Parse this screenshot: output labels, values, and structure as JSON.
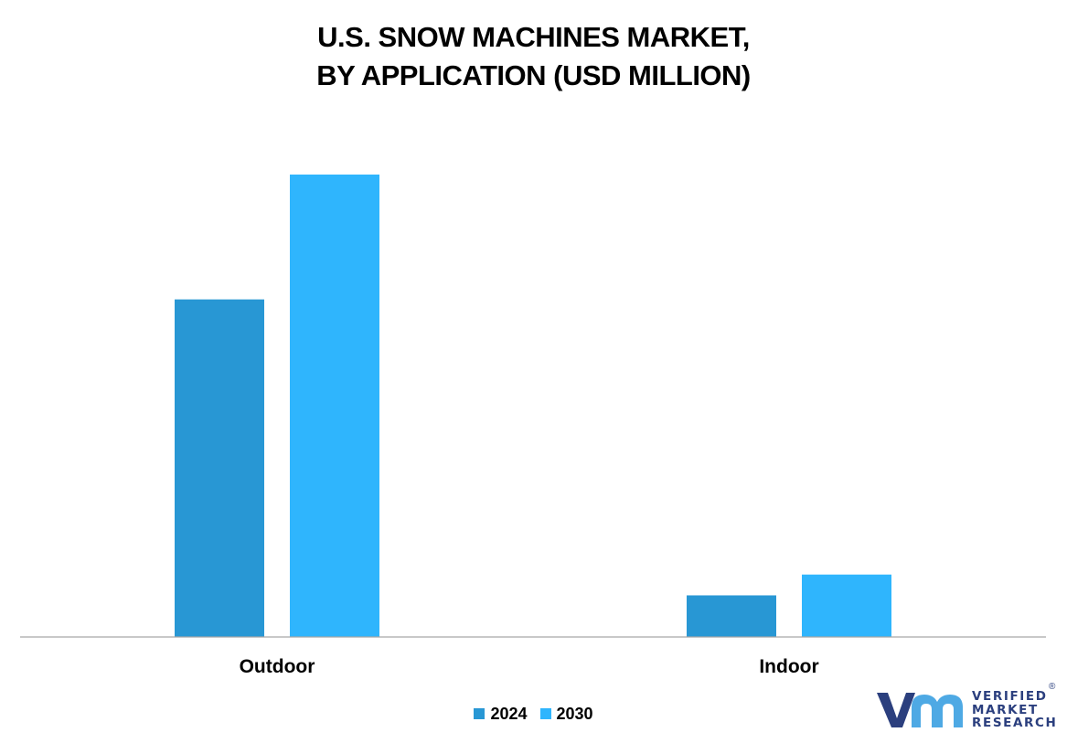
{
  "title_lines": [
    "U.S. SNOW MACHINES MARKET,",
    "BY APPLICATION (USD MILLION)"
  ],
  "colors": {
    "series_2024": "#2897d4",
    "series_2030": "#2fb5fd",
    "axis": "#a6a6a6",
    "logo_blue": "#2b3f7e",
    "logo_light": "#4ea9e4"
  },
  "legend": [
    {
      "label": "2024",
      "color_key": "series_2024"
    },
    {
      "label": "2030",
      "color_key": "series_2030"
    }
  ],
  "logo": {
    "lines": [
      "VERIFIED",
      "MARKET",
      "RESEARCH"
    ],
    "mark": "®"
  },
  "chart_data": {
    "type": "bar",
    "title": "U.S. SNOW MACHINES MARKET, BY APPLICATION (USD MILLION)",
    "categories": [
      "Outdoor",
      "Indoor"
    ],
    "series": [
      {
        "name": "2024",
        "values": [
          73,
          9
        ]
      },
      {
        "name": "2030",
        "values": [
          100,
          13.5
        ]
      }
    ],
    "xlabel": "",
    "ylabel": "",
    "ylim": [
      0,
      100
    ],
    "grid": false,
    "y_axis_visible": false,
    "legend_position": "bottom"
  }
}
